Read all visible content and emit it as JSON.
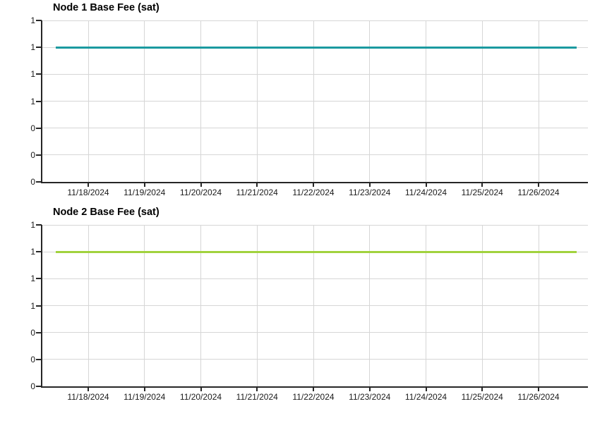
{
  "colors": {
    "background": "#ffffff",
    "grid": "#d6d6d6",
    "axis": "#262626",
    "tick_text": "#1a1a1a",
    "title_text": "#000000"
  },
  "chart_data": [
    {
      "type": "line",
      "title": "Node 1 Base Fee (sat)",
      "xlabel": "",
      "ylabel": "",
      "ylim": [
        0,
        1.2
      ],
      "grid": true,
      "legend": "none",
      "y_tick_values": [
        1.2,
        1.0,
        0.8,
        0.6,
        0.4,
        0.2,
        0
      ],
      "y_tick_labels": [
        "1",
        "1",
        "1",
        "1",
        "0",
        "0",
        "0"
      ],
      "x_tick_labels": [
        "11/18/2024",
        "11/19/2024",
        "11/20/2024",
        "11/21/2024",
        "11/22/2024",
        "11/23/2024",
        "11/24/2024",
        "11/25/2024",
        "11/26/2024"
      ],
      "series": [
        {
          "name": "Node 1 Base Fee",
          "color": "#1b9aa0",
          "constant_value": 1,
          "x_span_frac": [
            0.025,
            0.979
          ]
        }
      ]
    },
    {
      "type": "line",
      "title": "Node 2 Base Fee (sat)",
      "xlabel": "",
      "ylabel": "",
      "ylim": [
        0,
        1.2
      ],
      "grid": true,
      "legend": "none",
      "y_tick_values": [
        1.2,
        1.0,
        0.8,
        0.6,
        0.4,
        0.2,
        0
      ],
      "y_tick_labels": [
        "1",
        "1",
        "1",
        "1",
        "0",
        "0",
        "0"
      ],
      "x_tick_labels": [
        "11/18/2024",
        "11/19/2024",
        "11/20/2024",
        "11/21/2024",
        "11/22/2024",
        "11/23/2024",
        "11/24/2024",
        "11/25/2024",
        "11/26/2024"
      ],
      "series": [
        {
          "name": "Node 2 Base Fee",
          "color": "#a1d23e",
          "constant_value": 1,
          "x_span_frac": [
            0.025,
            0.979
          ]
        }
      ]
    }
  ]
}
